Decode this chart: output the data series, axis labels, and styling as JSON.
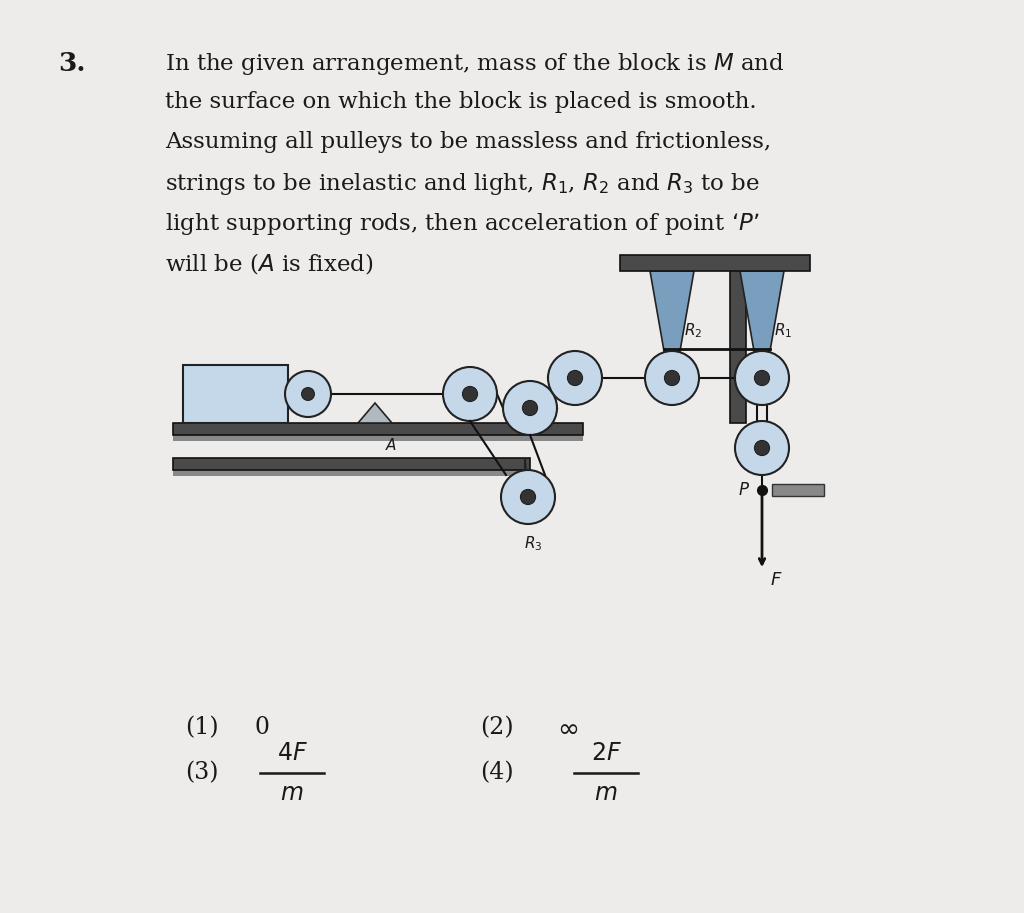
{
  "bg_color": "#edecea",
  "text_color": "#1a1a1a",
  "question_num": "3.",
  "question_text_lines": [
    "In the given arrangement, mass of the block is $M$ and",
    "the surface on which the block is placed is smooth.",
    "Assuming all pulleys to be massless and frictionless,",
    "strings to be inelastic and light, $R_1$, $R_2$ and $R_3$ to be",
    "light supporting rods, then acceleration of point ‘$P$’",
    "will be ($A$ is fixed)"
  ],
  "pulley_color": "#c4d8ea",
  "pulley_edge": "#222222",
  "rod_color": "#7a9ab5",
  "surface_color": "#555555",
  "block_color": "#c4d8ea",
  "block_edge": "#222222",
  "string_color": "#111111",
  "arrow_color": "#111111",
  "wedge_color": "#8aafc8"
}
